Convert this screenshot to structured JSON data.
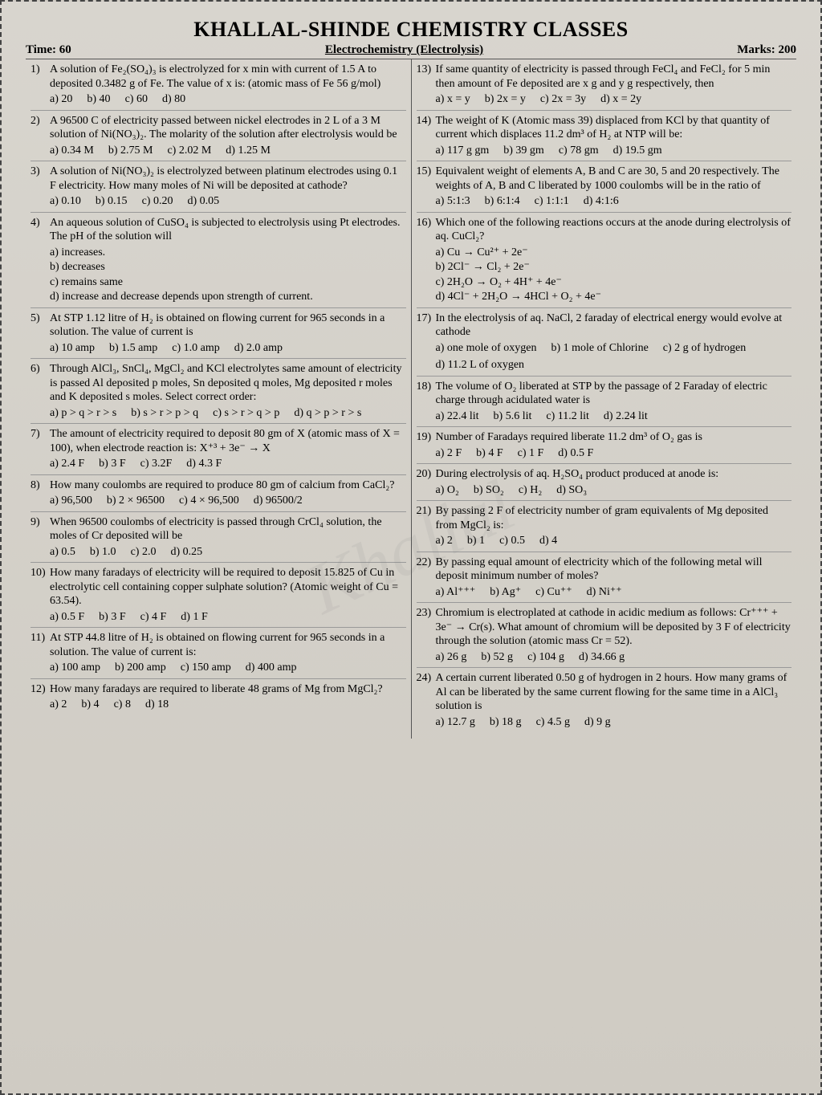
{
  "header": {
    "title": "KHALLAL-SHINDE CHEMISTRY CLASSES",
    "time_label": "Time: 60",
    "subject": "Electrochemistry (Electrolysis)",
    "marks_label": "Marks: 200"
  },
  "watermark": "Khallal",
  "left_questions": [
    {
      "n": "1)",
      "text": "A solution of Fe₂(SO₄)₃ is electrolyzed for x min with current of 1.5 A to deposited 0.3482 g of Fe. The value of x is: (atomic mass of Fe 56 g/mol)",
      "opts": [
        "a) 20",
        "b) 40",
        "c) 60",
        "d) 80"
      ]
    },
    {
      "n": "2)",
      "text": "A 96500 C of electricity passed between nickel electrodes in 2 L of a 3 M solution of Ni(NO₃)₂. The molarity of the solution after electrolysis would be",
      "opts": [
        "a) 0.34 M",
        "b) 2.75 M",
        "c) 2.02 M",
        "d) 1.25 M"
      ]
    },
    {
      "n": "3)",
      "text": "A solution of Ni(NO₃)₂ is electrolyzed between platinum electrodes using 0.1 F electricity. How many moles of Ni will be deposited at cathode?",
      "opts": [
        "a) 0.10",
        "b) 0.15",
        "c) 0.20",
        "d) 0.05"
      ]
    },
    {
      "n": "4)",
      "text": "An aqueous solution of CuSO₄ is subjected to electrolysis using Pt electrodes. The pH of the solution will",
      "opts_stack": [
        "a) increases.",
        "b) decreases",
        "c) remains same",
        "d) increase and decrease depends upon strength of current."
      ]
    },
    {
      "n": "5)",
      "text": "At STP 1.12 litre of H₂ is obtained on flowing current for 965 seconds in a solution. The value of current is",
      "opts": [
        "a) 10 amp",
        "b) 1.5 amp",
        "c) 1.0 amp",
        "d) 2.0 amp"
      ]
    },
    {
      "n": "6)",
      "text": "Through AlCl₃, SnCl₄, MgCl₂ and KCl electrolytes same amount of electricity is passed Al deposited p moles, Sn deposited q moles, Mg deposited r moles and K deposited s moles. Select correct order:",
      "opts": [
        "a) p > q > r > s",
        "b) s > r > p > q",
        "c) s > r > q > p",
        "d) q > p > r > s"
      ]
    },
    {
      "n": "7)",
      "text": "The amount of electricity required to deposit 80 gm of X (atomic mass of X = 100), when electrode reaction is:  X⁺³ + 3e⁻ → X",
      "opts": [
        "a) 2.4 F",
        "b) 3 F",
        "c) 3.2F",
        "d) 4.3 F"
      ]
    },
    {
      "n": "8)",
      "text": "How many coulombs are required to produce 80 gm of calcium from CaCl₂?",
      "opts": [
        "a) 96,500",
        "b) 2 × 96500",
        "c) 4 × 96,500",
        "d) 96500/2"
      ]
    },
    {
      "n": "9)",
      "text": "When 96500 coulombs of electricity is passed through CrCl₄ solution, the moles of Cr deposited will be",
      "opts": [
        "a) 0.5",
        "b) 1.0",
        "c) 2.0",
        "d) 0.25"
      ]
    },
    {
      "n": "10)",
      "text": "How many faradays of electricity will be required to deposit 15.825 of Cu in electrolytic cell containing copper sulphate solution? (Atomic weight of Cu = 63.54).",
      "opts": [
        "a) 0.5 F",
        "b) 3 F",
        "c) 4 F",
        "d) 1 F"
      ]
    },
    {
      "n": "11)",
      "text": "At STP 44.8 litre of H₂ is obtained on flowing current for 965 seconds in a solution. The value of current is:",
      "opts": [
        "a) 100 amp",
        "b) 200 amp",
        "c) 150 amp",
        "d) 400 amp"
      ]
    },
    {
      "n": "12)",
      "text": "How many faradays are required to liberate 48 grams of Mg from MgCl₂?",
      "opts": [
        "a) 2",
        "b) 4",
        "c) 8",
        "d) 18"
      ]
    }
  ],
  "right_questions": [
    {
      "n": "13)",
      "text": "If same quantity of electricity is passed through FeCl₄ and FeCl₂ for 5 min then amount of Fe deposited are x g and y g respectively, then",
      "opts": [
        "a) x = y",
        "b) 2x = y",
        "c) 2x = 3y",
        "d) x = 2y"
      ]
    },
    {
      "n": "14)",
      "text": "The weight of K (Atomic mass 39) displaced from KCl by that quantity of current which displaces 11.2 dm³ of H₂ at NTP will be:",
      "opts": [
        "a) 117 g gm",
        "b) 39 gm",
        "c) 78 gm",
        "d) 19.5 gm"
      ]
    },
    {
      "n": "15)",
      "text": "Equivalent weight of elements A, B and C are 30, 5 and 20 respectively. The weights of A, B and C liberated by 1000 coulombs will be in the ratio of",
      "opts": [
        "a) 5:1:3",
        "b) 6:1:4",
        "c) 1:1:1",
        "d) 4:1:6"
      ]
    },
    {
      "n": "16)",
      "text": "Which one of the following reactions occurs at the anode during electrolysis of aq. CuCl₂?",
      "opts_stack": [
        "a) Cu → Cu²⁺ + 2e⁻",
        "b) 2Cl⁻ → Cl₂ + 2e⁻",
        "c) 2H₂O → O₂ + 4H⁺ + 4e⁻",
        "d) 4Cl⁻ + 2H₂O → 4HCl + O₂ + 4e⁻"
      ]
    },
    {
      "n": "17)",
      "text": "In the electrolysis of aq. NaCl, 2 faraday of electrical energy would evolve at cathode",
      "opts": [
        "a) one mole of oxygen",
        "b) 1 mole of Chlorine",
        "c) 2 g of hydrogen",
        "d) 11.2 L of oxygen"
      ]
    },
    {
      "n": "18)",
      "text": "The volume of O₂ liberated at STP by the passage of 2 Faraday of electric charge through acidulated water is",
      "opts": [
        "a) 22.4 lit",
        "b) 5.6 lit",
        "c) 11.2 lit",
        "d) 2.24 lit"
      ]
    },
    {
      "n": "19)",
      "text": "Number of Faradays required liberate 11.2 dm³ of O₂ gas is",
      "opts": [
        "a) 2 F",
        "b) 4 F",
        "c) 1 F",
        "d) 0.5 F"
      ]
    },
    {
      "n": "20)",
      "text": "During electrolysis of aq. H₂SO₄ product produced at anode is:",
      "opts": [
        "a) O₂",
        "b) SO₂",
        "c) H₂",
        "d) SO₃"
      ]
    },
    {
      "n": "21)",
      "text": "By passing 2 F of electricity number of gram equivalents of Mg deposited from MgCl₂ is:",
      "opts": [
        "a) 2",
        "b) 1",
        "c) 0.5",
        "d) 4"
      ]
    },
    {
      "n": "22)",
      "text": "By passing equal amount of electricity which of the following metal will deposit minimum number of moles?",
      "opts": [
        "a) Al⁺⁺⁺",
        "b) Ag⁺",
        "c) Cu⁺⁺",
        "d) Ni⁺⁺"
      ]
    },
    {
      "n": "23)",
      "text": "Chromium is electroplated at cathode in acidic medium as follows: Cr⁺⁺⁺ + 3e⁻ → Cr(s). What amount of chromium will be deposited by 3 F of electricity through the solution (atomic mass Cr = 52).",
      "opts": [
        "a) 26 g",
        "b) 52 g",
        "c) 104 g",
        "d) 34.66 g"
      ]
    },
    {
      "n": "24)",
      "text": "A certain current liberated 0.50 g of hydrogen in 2 hours. How many grams of Al can be liberated by the same current flowing for the same time in a AlCl₃ solution is",
      "opts": [
        "a) 12.7 g",
        "b) 18 g",
        "c) 4.5 g",
        "d) 9 g"
      ]
    }
  ]
}
